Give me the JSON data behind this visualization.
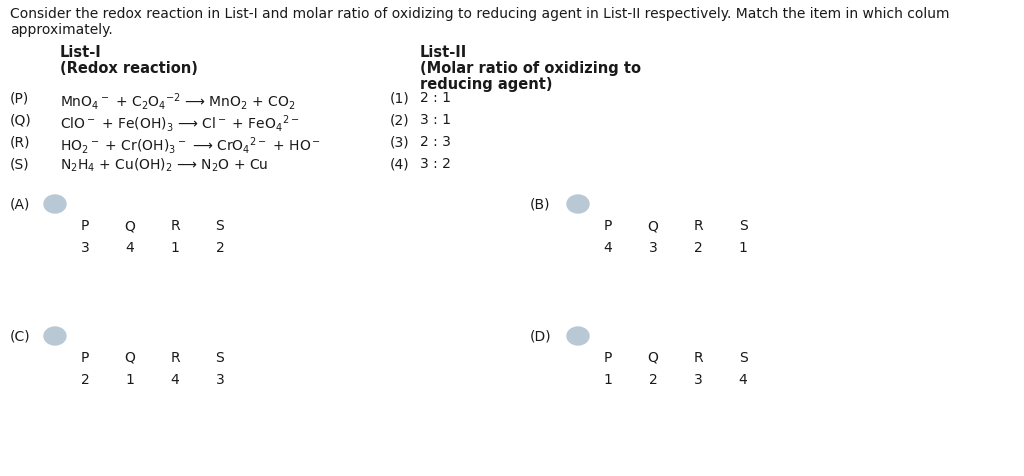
{
  "title_line1": "Consider the redox reaction in List-I and molar ratio of oxidizing to reducing agent in List-II respectively. Match the item in which colum",
  "title_line2": "approximately.",
  "list1_header1": "List-I",
  "list1_header2": "(Redox reaction)",
  "list2_header1": "List-II",
  "list2_header2": "(Molar ratio of oxidizing to",
  "list2_header3": "reducing agent)",
  "reactions": [
    [
      "(P)",
      "MnO$_4$$^-$ + C$_2$O$_4$$^{-2}$ ⟶ MnO$_2$ + CO$_2$"
    ],
    [
      "(Q)",
      "ClO$^-$ + Fe(OH)$_3$ ⟶ Cl$^-$ + FeO$_4$$^{2-}$"
    ],
    [
      "(R)",
      "HO$_2$$^-$ + Cr(OH)$_3$$^-$ ⟶ CrO$_4$$^{2-}$ + HO$^-$"
    ],
    [
      "(S)",
      "N$_2$H$_4$ + Cu(OH)$_2$ ⟶ N$_2$O + Cu"
    ]
  ],
  "ratios": [
    [
      "(1)",
      "2 : 1"
    ],
    [
      "(2)",
      "3 : 1"
    ],
    [
      "(3)",
      "2 : 3"
    ],
    [
      "(4)",
      "3 : 2"
    ]
  ],
  "options": [
    {
      "label": "(A)",
      "headers": [
        "P",
        "Q",
        "R",
        "S"
      ],
      "values": [
        "3",
        "4",
        "1",
        "2"
      ]
    },
    {
      "label": "(B)",
      "headers": [
        "P",
        "Q",
        "R",
        "S"
      ],
      "values": [
        "4",
        "3",
        "2",
        "1"
      ]
    },
    {
      "label": "(C)",
      "headers": [
        "P",
        "Q",
        "R",
        "S"
      ],
      "values": [
        "2",
        "1",
        "4",
        "3"
      ]
    },
    {
      "label": "(D)",
      "headers": [
        "P",
        "Q",
        "R",
        "S"
      ],
      "values": [
        "1",
        "2",
        "3",
        "4"
      ]
    }
  ],
  "bg_color": "#ffffff",
  "text_color": "#1a1a1a",
  "circle_color": "#b8c8d4",
  "font_size_title": 10.5,
  "font_size_body": 10,
  "font_size_bold": 10.5
}
